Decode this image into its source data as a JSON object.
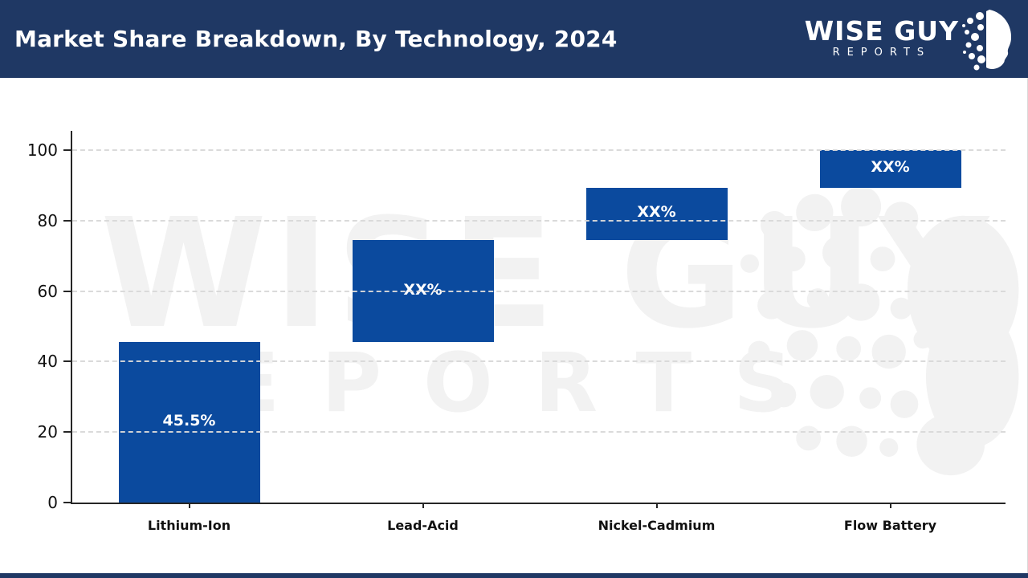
{
  "header": {
    "title": "Market Share Breakdown, By Technology, 2024",
    "bg_color": "#1f3864",
    "brand": {
      "line1": "WISE GUY",
      "line2": "REPORTS"
    }
  },
  "watermark": {
    "line1": "WISE GUY",
    "line2": "REPORTS",
    "color": "#f2f2f2"
  },
  "chart_data": {
    "type": "bar",
    "subtype": "waterfall",
    "title": "Market Share Breakdown, By Technology, 2024",
    "xlabel": "",
    "ylabel": "",
    "categories": [
      "Lithium-Ion",
      "Lead-Acid",
      "Nickel-Cadmium",
      "Flow Battery"
    ],
    "segments": [
      {
        "category": "Lithium-Ion",
        "start": 0,
        "end": 45.5,
        "label": "45.5%"
      },
      {
        "category": "Lead-Acid",
        "start": 45.5,
        "end": 74.5,
        "label": "XX%"
      },
      {
        "category": "Nickel-Cadmium",
        "start": 74.5,
        "end": 89.3,
        "label": "XX%"
      },
      {
        "category": "Flow Battery",
        "start": 89.3,
        "end": 100,
        "label": "XX%"
      }
    ],
    "yticks": [
      0,
      20,
      40,
      60,
      80,
      100
    ],
    "ylim": [
      0,
      105
    ],
    "grid": "horizontal dashed, drawn above bars",
    "legend": "none",
    "bar_color": "#0b4a9e",
    "bar_label_color": "#ffffff",
    "axis_color": "#262626",
    "grid_color": "#d9d9d9"
  }
}
